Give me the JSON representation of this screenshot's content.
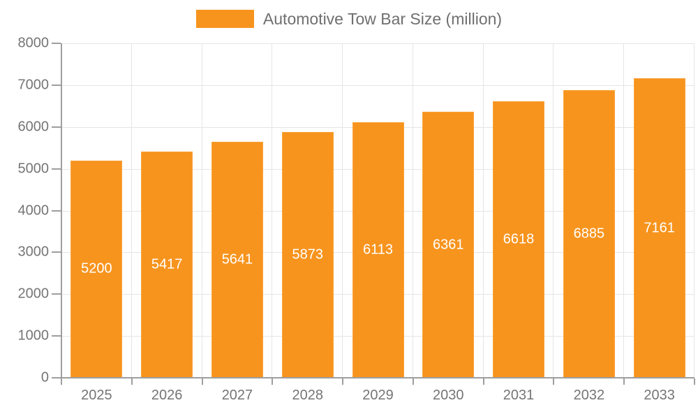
{
  "chart_data": {
    "type": "bar",
    "title": "Automotive Tow Bar Size (million)",
    "categories": [
      "2025",
      "2026",
      "2027",
      "2028",
      "2029",
      "2030",
      "2031",
      "2032",
      "2033"
    ],
    "values": [
      5200,
      5417,
      5641,
      5873,
      6113,
      6361,
      6618,
      6885,
      7161
    ],
    "xlabel": "",
    "ylabel": "",
    "ylim": [
      0,
      8000
    ],
    "yticks": [
      0,
      1000,
      2000,
      3000,
      4000,
      5000,
      6000,
      7000,
      8000
    ],
    "grid": true,
    "legend_position": "top-center",
    "value_labels": "inside-center",
    "colors": {
      "bar": "#F7941E",
      "bar_border": "#F9A43C",
      "grid": "#E5E5E5",
      "axis": "#9E9E9E",
      "tick_text": "#757575",
      "legend_text": "#6F6F6F",
      "value_label_text": "#FFFFFF",
      "background": "#FFFFFF"
    }
  }
}
